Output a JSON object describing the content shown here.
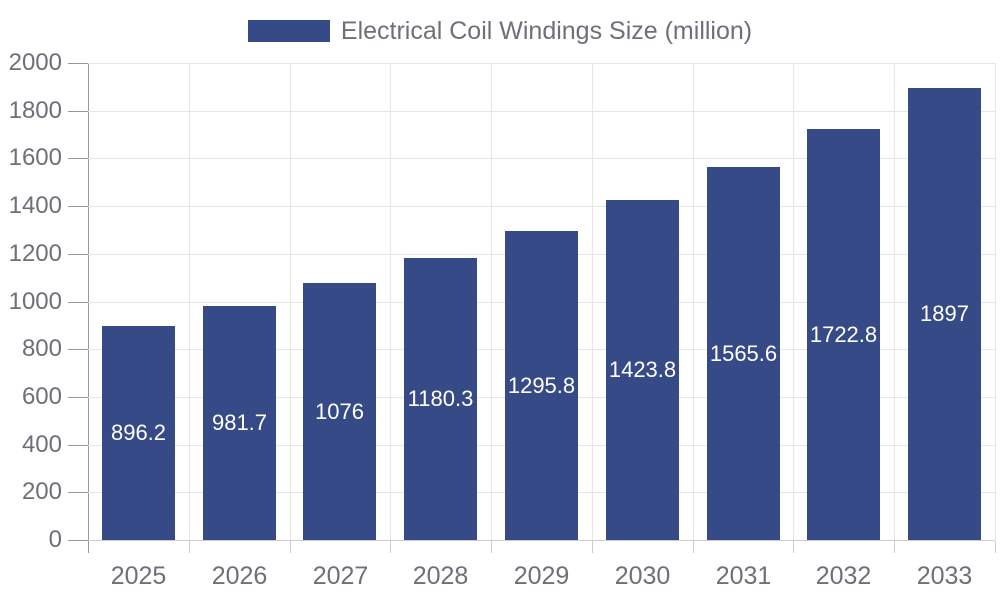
{
  "chart_data": {
    "type": "bar",
    "title": "Electrical Coil Windings Size (million)",
    "categories": [
      "2025",
      "2026",
      "2027",
      "2028",
      "2029",
      "2030",
      "2031",
      "2032",
      "2033"
    ],
    "values": [
      896.2,
      981.7,
      1076,
      1180.3,
      1295.8,
      1423.8,
      1565.6,
      1722.8,
      1897
    ],
    "xlabel": "",
    "ylabel": "",
    "ylim": [
      0,
      2000
    ],
    "ytick_step": 200,
    "yticks": [
      0,
      200,
      400,
      600,
      800,
      1000,
      1200,
      1400,
      1600,
      1800,
      2000
    ],
    "grid": true,
    "legend_position": "top",
    "colors": {
      "bar": "#374A88",
      "value_label": "#FFFFFF",
      "axis_text": "#6E7079",
      "legend_text": "#6E7079",
      "gridline": "#E6E6E6",
      "y_axis_line": "#999999",
      "x_axis_line": "#CCCCCC",
      "background": "#FFFFFF"
    }
  }
}
